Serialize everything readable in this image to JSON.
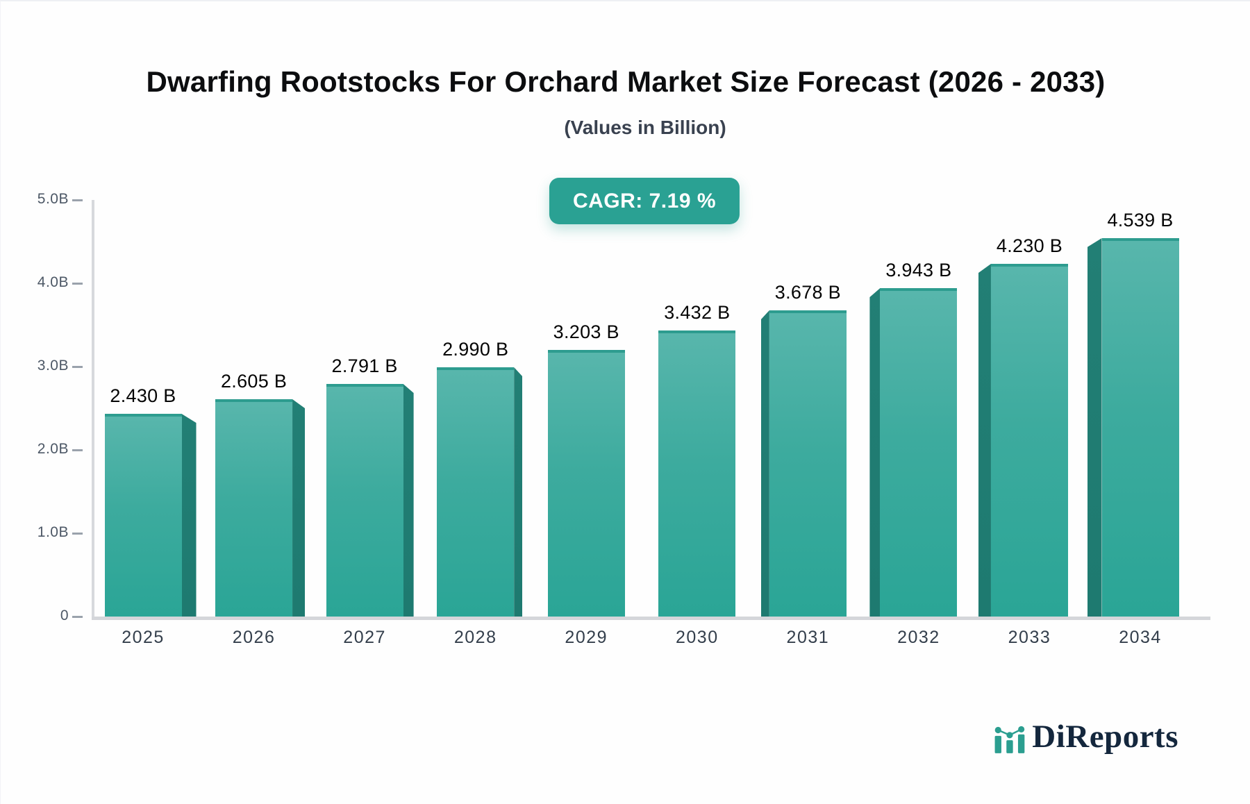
{
  "header": {
    "title": "Dwarfing Rootstocks For Orchard Market Size Forecast (2026 - 2033)",
    "subtitle": "(Values in Billion)",
    "cagr_badge": "CAGR: 7.19 %"
  },
  "chart_data": {
    "type": "bar",
    "title": "Dwarfing Rootstocks For Orchard Market Size Forecast (2026 - 2033)",
    "subtitle": "(Values in Billion)",
    "cagr_percent": 7.19,
    "categories": [
      "2025",
      "2026",
      "2027",
      "2028",
      "2029",
      "2030",
      "2031",
      "2032",
      "2033",
      "2034"
    ],
    "values": [
      2.43,
      2.605,
      2.791,
      2.99,
      3.203,
      3.432,
      3.678,
      3.943,
      4.23,
      4.539
    ],
    "value_labels": [
      "2.430 B",
      "2.605 B",
      "2.791 B",
      "2.990 B",
      "3.203 B",
      "3.432 B",
      "3.678 B",
      "3.943 B",
      "4.230 B",
      "4.539 B"
    ],
    "xlabel": "",
    "ylabel": "",
    "ylim": [
      0,
      5
    ],
    "grid": false,
    "legend": false,
    "y_ticks": {
      "labels": [
        "5.0B",
        "4.0B",
        "3.0B",
        "2.0B",
        "1.0B",
        "0"
      ],
      "values": [
        5,
        4,
        3,
        2,
        1,
        0
      ]
    },
    "colors": {
      "bar_face_top": "#58b6ac",
      "bar_face_bottom": "#2aa596",
      "bar_side": "#1e7a70",
      "bar_top_edge": "#2d9c8f",
      "badge_background": "#2aa193",
      "badge_text": "#ffffff",
      "axis_line": "#d6d8dc",
      "y_tick_text": "#4d5866",
      "x_tick_text": "#333e4b",
      "value_label_text": "#050505",
      "title_text": "#0c0d0f",
      "subtitle_text": "#39414f"
    }
  },
  "branding": {
    "name": "DiReports",
    "logo_color": "#2b9e90",
    "text_color": "#14273d"
  }
}
